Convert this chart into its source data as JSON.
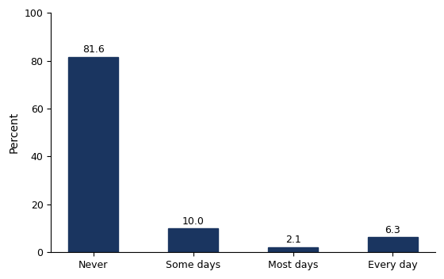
{
  "categories": [
    "Never",
    "Some days",
    "Most days",
    "Every day"
  ],
  "values": [
    81.6,
    10.0,
    2.1,
    6.3
  ],
  "bar_color": "#1a3560",
  "ylabel": "Percent",
  "ylim": [
    0,
    100
  ],
  "yticks": [
    0,
    20,
    40,
    60,
    80,
    100
  ],
  "bar_width": 0.5,
  "label_fontsize": 9,
  "tick_fontsize": 9,
  "ylabel_fontsize": 10,
  "background_color": "#ffffff",
  "edge_color": "#333333"
}
